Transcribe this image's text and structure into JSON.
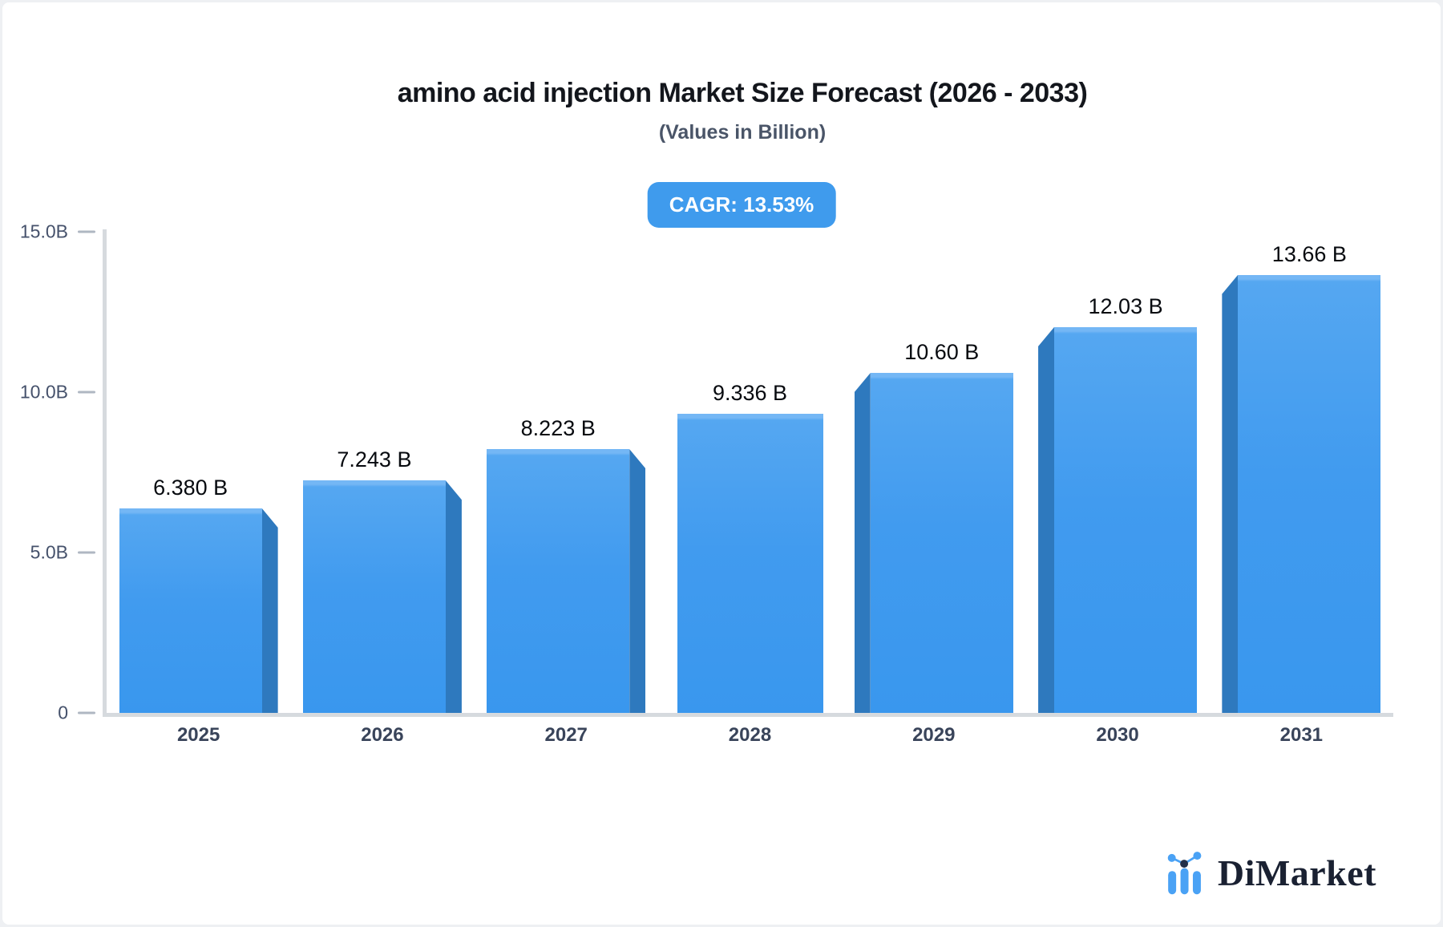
{
  "header": {
    "title": "amino acid injection Market Size Forecast (2026 - 2033)",
    "subtitle": "(Values in Billion)",
    "cagr_label": "CAGR: 13.53%"
  },
  "chart_data": {
    "type": "bar",
    "title": "amino acid injection Market Size Forecast (2026 - 2033)",
    "subtitle": "(Values in Billion)",
    "cagr": "13.53%",
    "categories": [
      "2025",
      "2026",
      "2027",
      "2028",
      "2029",
      "2030",
      "2031"
    ],
    "values": [
      6.38,
      7.243,
      8.223,
      9.336,
      10.6,
      12.03,
      13.66
    ],
    "value_labels": [
      "6.380 B",
      "7.243 B",
      "8.223 B",
      "9.336 B",
      "10.60 B",
      "12.03 B",
      "13.66 B"
    ],
    "ylim": [
      0,
      15
    ],
    "y_ticks": [
      {
        "label": "15.0B",
        "value": 15
      },
      {
        "label": "10.0B",
        "value": 10
      },
      {
        "label": "5.0B",
        "value": 5
      },
      {
        "label": "0",
        "value": 0
      }
    ],
    "grid": false,
    "legend": false,
    "bar_color": "#3D9AEF",
    "bar_side_color": "#2E79BE",
    "bar_top_highlight": "#74B7F5"
  },
  "colors": {
    "badge_bg": "#3F9BED",
    "axis_line": "#D6DADE",
    "tick_text": "#45516B",
    "category_text": "#39445A",
    "title_text": "#13161C"
  },
  "branding": {
    "logo_text": "DiMarket",
    "logo_icon": "mini-bar-line-chart-icon"
  }
}
